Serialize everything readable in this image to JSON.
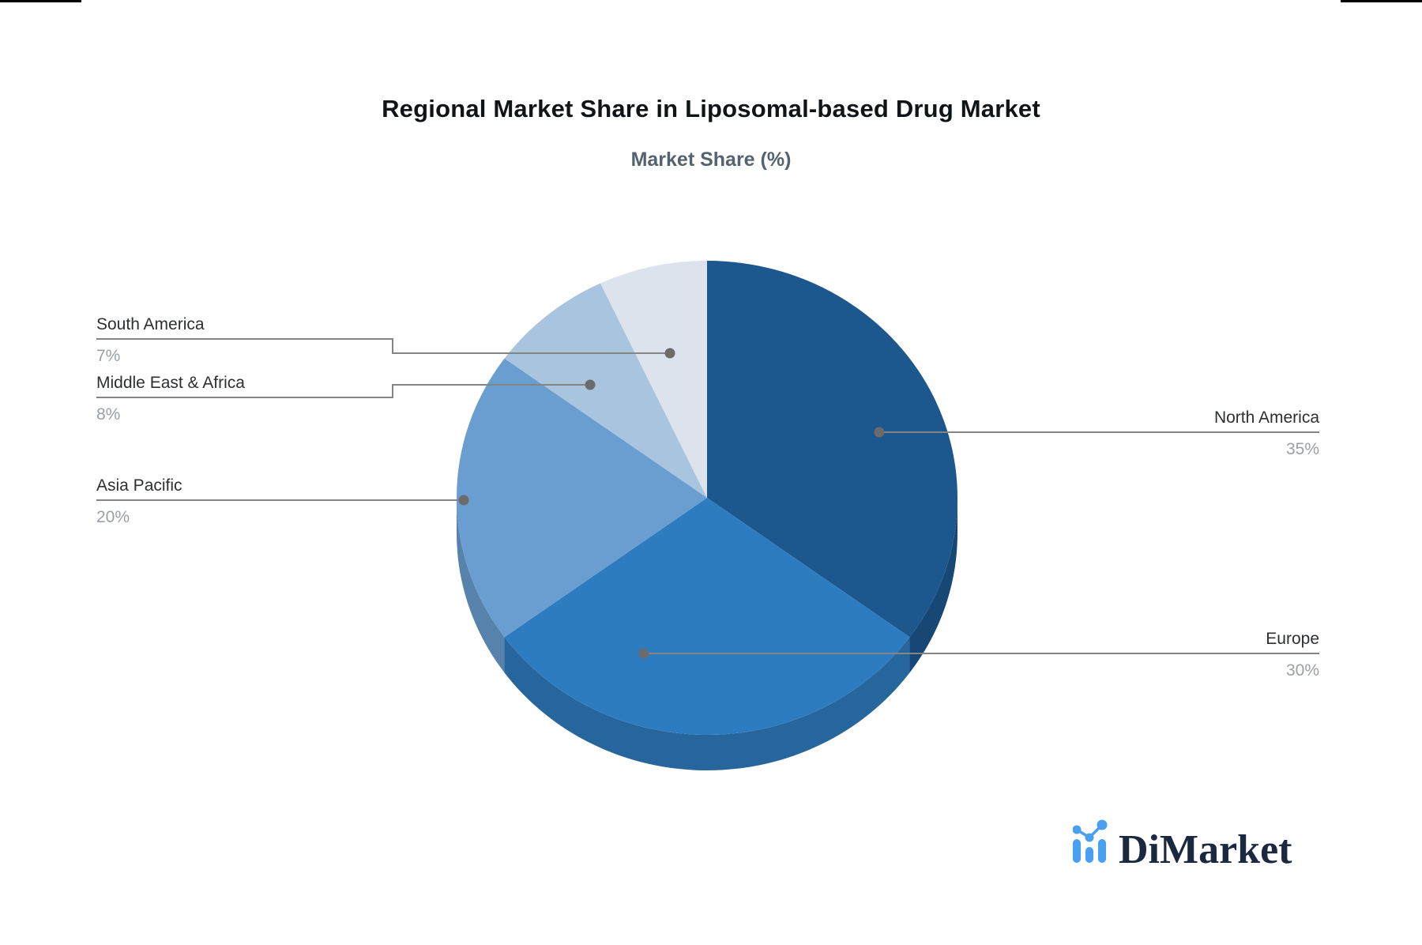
{
  "header": {
    "title": "Regional Market Share in Liposomal-based Drug Market",
    "subtitle": "Market Share (%)"
  },
  "chart_data": {
    "type": "pie",
    "title": "Regional Market Share in Liposomal-based Drug Market",
    "subtitle": "Market Share (%)",
    "unit": "%",
    "labels": [
      "North America",
      "Europe",
      "Asia Pacific",
      "Middle East & Africa",
      "South America"
    ],
    "values": [
      35,
      30,
      20,
      8,
      7
    ],
    "display_values": [
      "35%",
      "30%",
      "20%",
      "8%",
      "7%"
    ],
    "colors": [
      "#1c578e",
      "#2e7cc0",
      "#6a9ed0",
      "#a9c4df",
      "#dde3ed"
    ],
    "style": "pie-3d",
    "start_angle_deg": 0,
    "direction": "clockwise",
    "legend": "none",
    "label_position": "outside-with-leader-lines",
    "leader_line_color": "#848484",
    "leader_dot_color": "#6b6b6b",
    "label_text_color": "#2d2f31",
    "value_text_color": "#9aa0a5"
  },
  "branding": {
    "logo_text": "DiMarket",
    "logo_icon": "bar-chart-logo-icon",
    "logo_icon_color": "#4aa0f0",
    "logo_text_color": "#1a2840"
  }
}
